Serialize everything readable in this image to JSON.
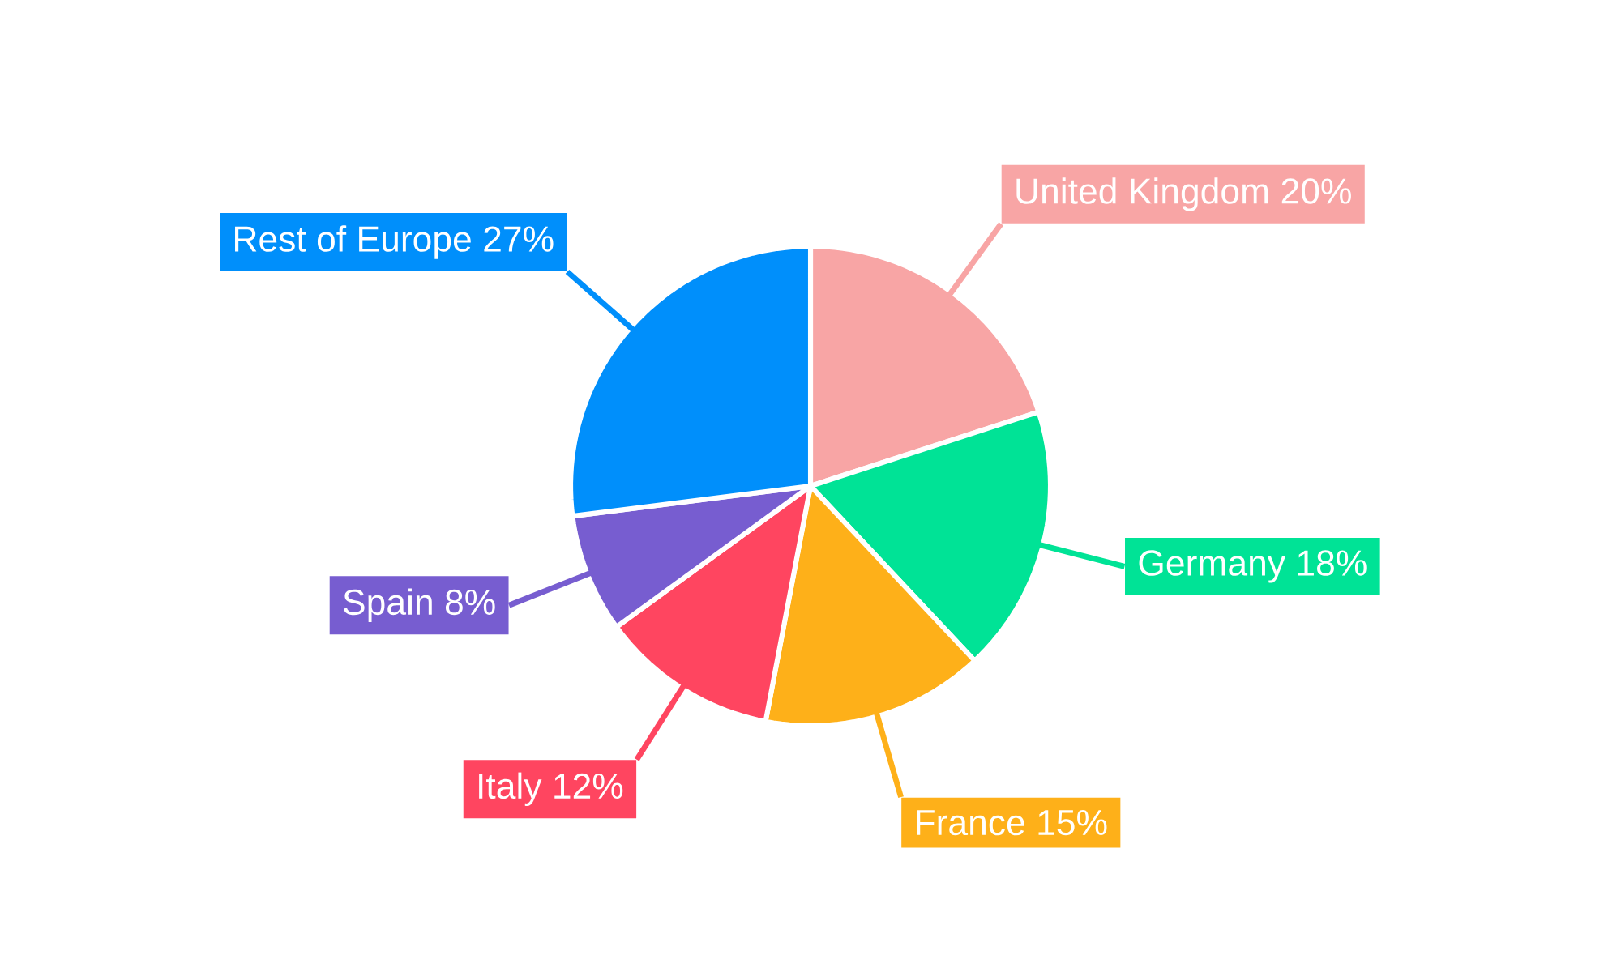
{
  "chart_data": {
    "type": "pie",
    "categories": [
      "United Kingdom",
      "Germany",
      "France",
      "Italy",
      "Spain",
      "Rest of Europe"
    ],
    "values": [
      20,
      18,
      15,
      12,
      8,
      27
    ],
    "value_labels": [
      "20%",
      "18%",
      "15%",
      "12%",
      "8%",
      "27%"
    ],
    "colors": [
      "#f8a5a5",
      "#00e396",
      "#feb019",
      "#ff4560",
      "#775dd0",
      "#008ffb"
    ]
  }
}
